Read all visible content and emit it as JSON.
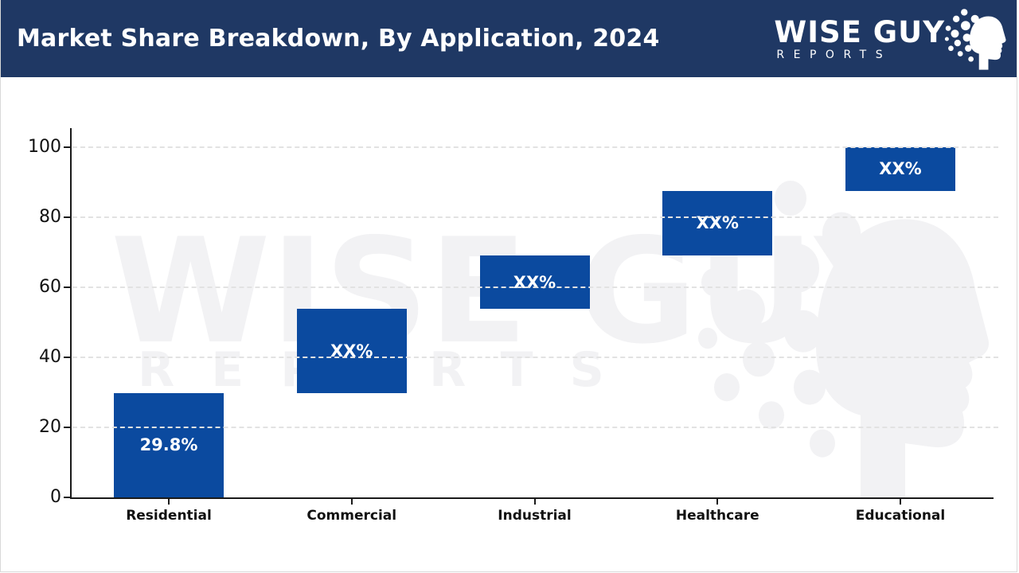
{
  "header": {
    "title": "Market Share Breakdown, By Application, 2024",
    "logo": {
      "name_top": "WISE GUY",
      "name_bottom": "REPORTS"
    }
  },
  "watermark": {
    "line1": "WISE GUY",
    "line2": "REPORTS"
  },
  "colors": {
    "header_bg": "#1f3864",
    "bar": "#0b4a9f",
    "bar_label": "#ffffff",
    "grid": "#e2e2e2",
    "axis": "#1a1a1a",
    "watermark": "#f2f2f4"
  },
  "chart_data": {
    "type": "bar",
    "subtype": "waterfall",
    "title": "Market Share Breakdown, By Application, 2024",
    "categories": [
      "Residential",
      "Commercial",
      "Industrial",
      "Healthcare",
      "Educational"
    ],
    "bars": [
      {
        "category": "Residential",
        "start": 0,
        "end": 29.8,
        "label": "29.8%"
      },
      {
        "category": "Commercial",
        "start": 29.8,
        "end": 53.8,
        "label": "XX%"
      },
      {
        "category": "Industrial",
        "start": 53.8,
        "end": 69.1,
        "label": "XX%"
      },
      {
        "category": "Healthcare",
        "start": 69.1,
        "end": 87.6,
        "label": "XX%"
      },
      {
        "category": "Educational",
        "start": 87.6,
        "end": 100,
        "label": "XX%"
      }
    ],
    "yticks": [
      0,
      20,
      40,
      60,
      80,
      100
    ],
    "ylim": [
      0,
      105
    ],
    "xlabel": "",
    "ylabel": "",
    "grid": "horizontal-dashed",
    "grid_above_bars": true,
    "legend": "none"
  }
}
